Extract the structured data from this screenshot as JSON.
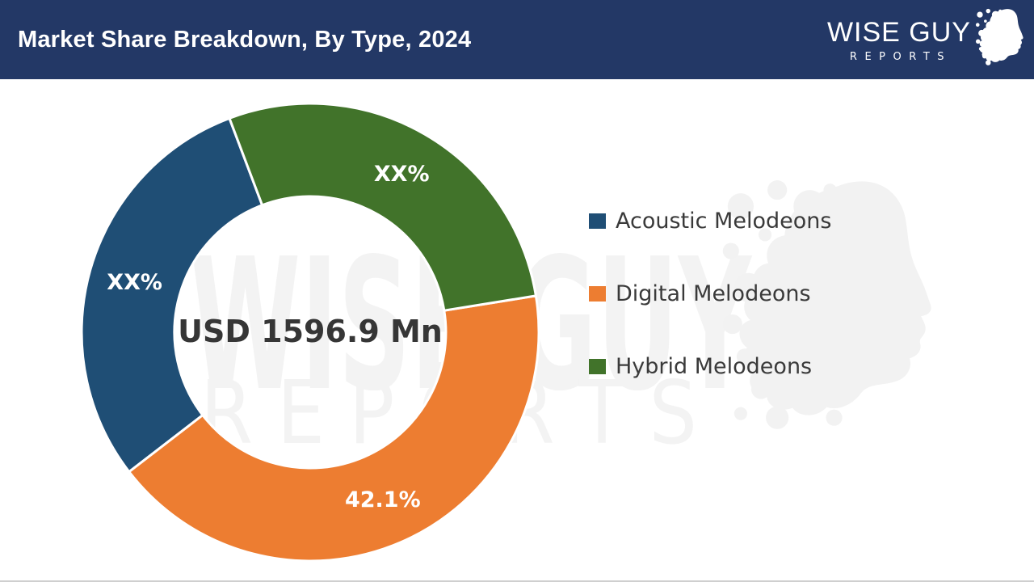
{
  "header": {
    "title": "Market Share Breakdown, By Type, 2024",
    "logo": {
      "line1": "WISE GUY",
      "line2": "REPORTS"
    }
  },
  "watermark": {
    "line1": "WISE GUY",
    "line2": "R E P O R T S"
  },
  "chart_data": {
    "type": "pie",
    "subtype": "donut",
    "title": "Market Share Breakdown, By Type, 2024",
    "center_label": "USD 1596.9 Mn",
    "start_angle_deg": 110.7,
    "direction": "counterclockwise",
    "legend_position": "right",
    "segments": [
      {
        "name": "Acoustic Melodeons",
        "label": "XX%",
        "value": 29.7,
        "color": "#1F4E75"
      },
      {
        "name": "Digital Melodeons",
        "label": "42.1%",
        "value": 42.1,
        "color": "#ED7D31"
      },
      {
        "name": "Hybrid Melodeons",
        "label": "XX%",
        "value": 28.2,
        "color": "#41732A"
      }
    ]
  }
}
